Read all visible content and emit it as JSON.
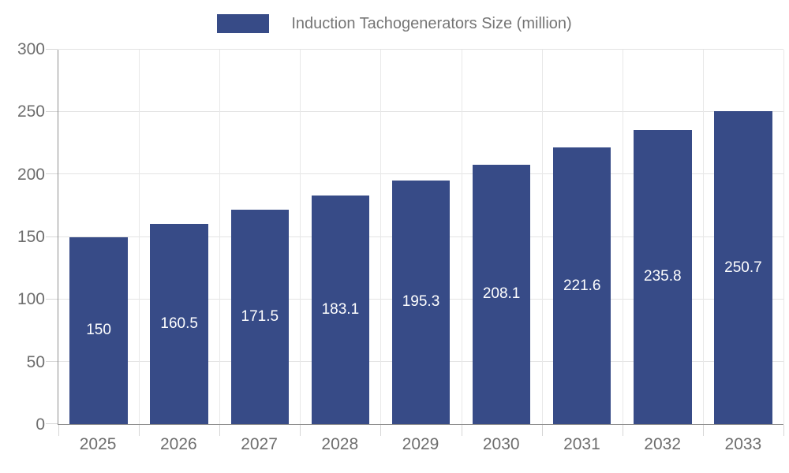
{
  "legend": {
    "label": "Induction Tachogenerators Size (million)"
  },
  "chart_data": {
    "type": "bar",
    "title": "",
    "xlabel": "",
    "ylabel": "",
    "categories": [
      "2025",
      "2026",
      "2027",
      "2028",
      "2029",
      "2030",
      "2031",
      "2032",
      "2033"
    ],
    "series": [
      {
        "name": "Induction Tachogenerators Size (million)",
        "values": [
          150,
          160.5,
          171.5,
          183.1,
          195.3,
          208.1,
          221.6,
          235.8,
          250.7
        ]
      }
    ],
    "value_labels": [
      "150",
      "160.5",
      "171.5",
      "183.1",
      "195.3",
      "208.1",
      "221.6",
      "235.8",
      "250.7"
    ],
    "ylim": [
      0,
      300
    ],
    "y_ticks": [
      0,
      50,
      100,
      150,
      200,
      250,
      300
    ],
    "grid": true,
    "legend_position": "top-center",
    "colors": {
      "bar": "#374b87",
      "legend_text": "#757575",
      "axis_label": "#6e6e6e",
      "axis_line": "#8f8f8f",
      "gridline": "#e3e3e3",
      "value_label": "#ffffff",
      "background": "#ffffff"
    }
  }
}
